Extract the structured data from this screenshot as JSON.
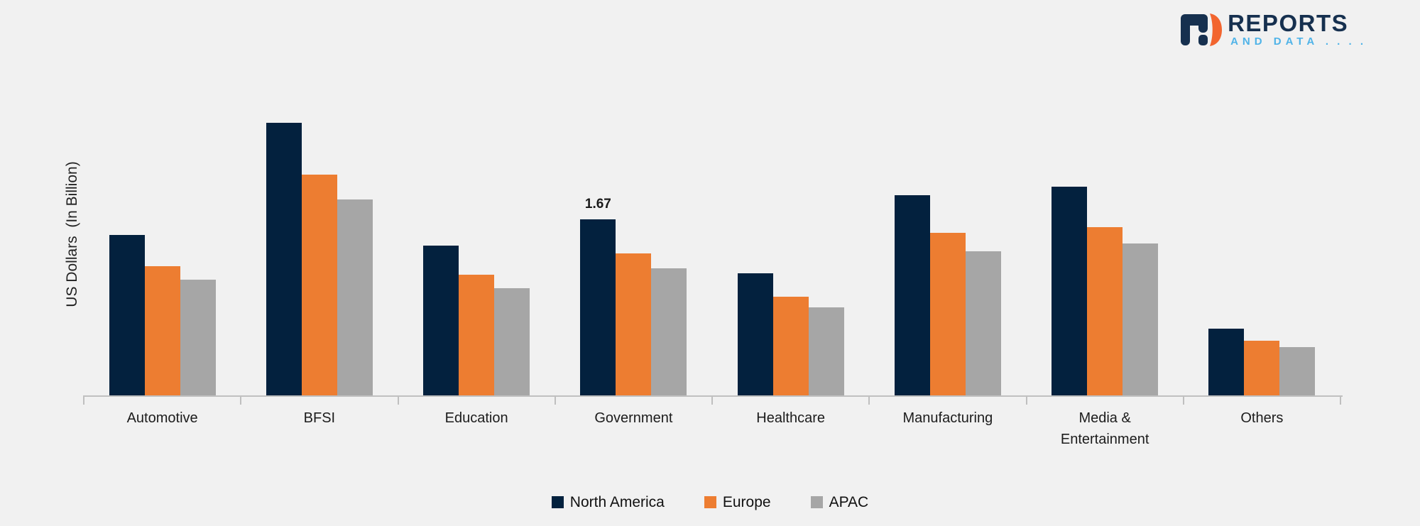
{
  "background_color": "#f1f1f1",
  "axis_color": "#c0c0c0",
  "logo": {
    "name": "Reports and Data",
    "line1": "REPORTS",
    "line2": "AND DATA",
    "dots": ". . . .",
    "navy_color": "#16304f",
    "orange_color": "#f2652f",
    "blue_color": "#4fb3e8"
  },
  "chart_data": {
    "type": "bar",
    "title": "",
    "xlabel": "",
    "ylabel": "US Dollars  (In Billion)",
    "ylim": [
      0,
      3.14
    ],
    "grid": false,
    "legend_position": "bottom",
    "y_axis_ticks_visible": false,
    "categories": [
      "Automotive",
      "BFSI",
      "Education",
      "Government",
      "Healthcare",
      "Manufacturing",
      "Media & Entertainment",
      "Others"
    ],
    "series": [
      {
        "name": "North America",
        "color": "#03213e",
        "values": [
          1.52,
          2.58,
          1.42,
          1.67,
          1.16,
          1.9,
          1.98,
          0.64
        ]
      },
      {
        "name": "Europe",
        "color": "#ed7d31",
        "values": [
          1.23,
          2.09,
          1.15,
          1.35,
          0.94,
          1.54,
          1.6,
          0.52
        ]
      },
      {
        "name": "APAC",
        "color": "#a6a6a6",
        "values": [
          1.1,
          1.86,
          1.02,
          1.21,
          0.84,
          1.37,
          1.44,
          0.46
        ]
      }
    ],
    "data_labels": [
      {
        "category": "Government",
        "series": "North America",
        "text": "1.67"
      }
    ]
  }
}
